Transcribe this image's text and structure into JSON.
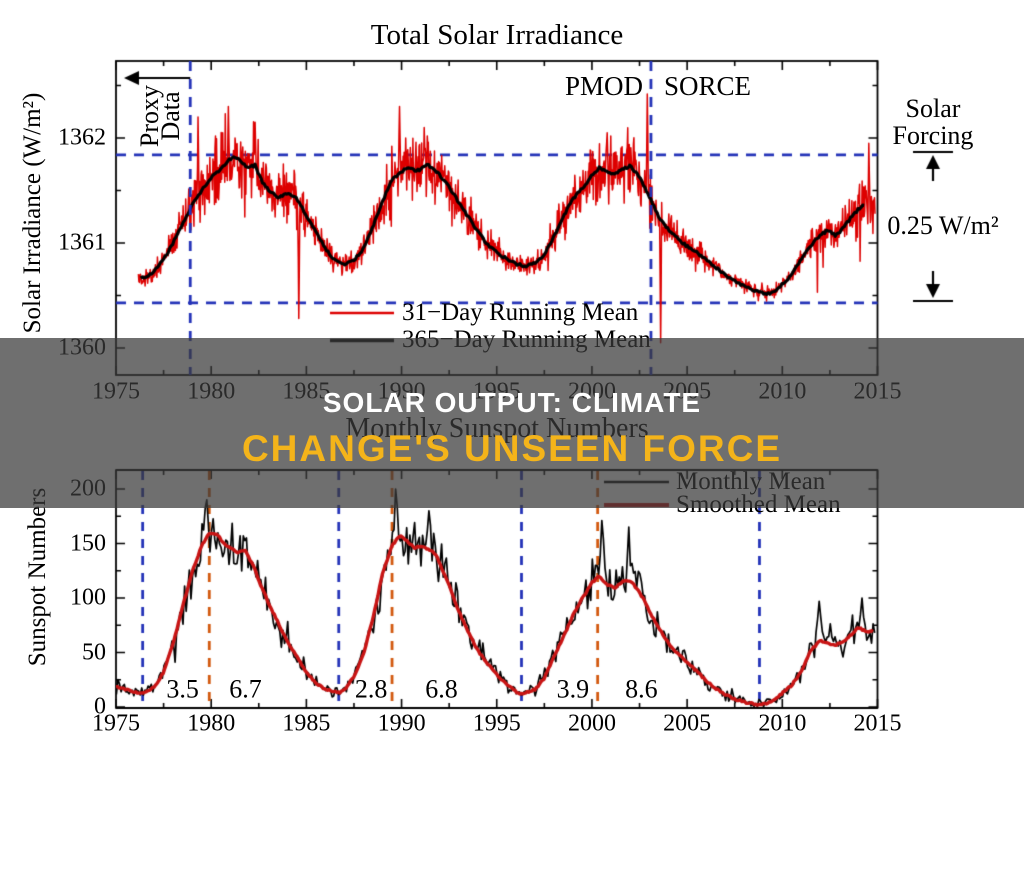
{
  "banner": {
    "line1": "SOLAR OUTPUT: CLIMATE",
    "line2": "CHANGE'S UNSEEN FORCE",
    "line1_color": "#ffffff",
    "line2_color": "#f4b41a",
    "overlay_color": "rgba(58,58,58,0.73)"
  },
  "chart_data": [
    {
      "type": "line",
      "title": "Total Solar Irradiance",
      "ylabel": "Solar Irradiance (W/m²)",
      "xlim": [
        1975,
        2015
      ],
      "ylim": [
        1359.74,
        1362.73
      ],
      "xticks": [
        1975,
        1980,
        1985,
        1990,
        1995,
        2000,
        2005,
        2010,
        2015
      ],
      "yticks": [
        1360,
        1361,
        1362
      ],
      "grid": false,
      "legend_position": "inside lower center",
      "series": [
        {
          "name": "31−Day Running Mean",
          "color": "#dd0000",
          "style": "noisy 31-day TSI oscillating about the 365-day mean; amplitude grows with solar activity",
          "noise_amplitude_range": [
            0.04,
            0.24
          ],
          "spikes": [
            [
              1979.3,
              1362.2
            ],
            [
              1980.9,
              1362.3
            ],
            [
              1982.3,
              1362.15
            ],
            [
              1984.6,
              1360.28
            ],
            [
              1989.9,
              1362.3
            ],
            [
              1991.2,
              1362.1
            ],
            [
              2000.8,
              1362.05
            ],
            [
              2002.9,
              1362.42
            ],
            [
              2003.6,
              1360.05
            ],
            [
              2014.55,
              1361.95
            ]
          ]
        },
        {
          "name": "365−Day Running Mean",
          "color": "#000000",
          "points": [
            [
              1976.3,
              1360.67
            ],
            [
              1976.6,
              1360.68
            ],
            [
              1977,
              1360.73
            ],
            [
              1977.5,
              1360.84
            ],
            [
              1978,
              1361.0
            ],
            [
              1978.5,
              1361.18
            ],
            [
              1979,
              1361.36
            ],
            [
              1979.5,
              1361.5
            ],
            [
              1980,
              1361.62
            ],
            [
              1980.5,
              1361.71
            ],
            [
              1981,
              1361.8
            ],
            [
              1981.3,
              1361.82
            ],
            [
              1981.6,
              1361.76
            ],
            [
              1982,
              1361.72
            ],
            [
              1982.3,
              1361.74
            ],
            [
              1982.7,
              1361.58
            ],
            [
              1983,
              1361.51
            ],
            [
              1983.5,
              1361.44
            ],
            [
              1984,
              1361.47
            ],
            [
              1984.4,
              1361.45
            ],
            [
              1984.8,
              1361.33
            ],
            [
              1985.2,
              1361.2
            ],
            [
              1985.6,
              1361.08
            ],
            [
              1986,
              1360.94
            ],
            [
              1986.5,
              1360.84
            ],
            [
              1987,
              1360.8
            ],
            [
              1987.5,
              1360.83
            ],
            [
              1988,
              1360.95
            ],
            [
              1988.5,
              1361.16
            ],
            [
              1989,
              1361.4
            ],
            [
              1989.5,
              1361.6
            ],
            [
              1990,
              1361.68
            ],
            [
              1990.3,
              1361.72
            ],
            [
              1990.7,
              1361.69
            ],
            [
              1991,
              1361.7
            ],
            [
              1991.3,
              1361.75
            ],
            [
              1991.6,
              1361.72
            ],
            [
              1992,
              1361.65
            ],
            [
              1992.5,
              1361.53
            ],
            [
              1993,
              1361.39
            ],
            [
              1993.5,
              1361.25
            ],
            [
              1994,
              1361.11
            ],
            [
              1994.5,
              1360.99
            ],
            [
              1995,
              1360.91
            ],
            [
              1995.5,
              1360.85
            ],
            [
              1996,
              1360.8
            ],
            [
              1996.5,
              1360.78
            ],
            [
              1997,
              1360.81
            ],
            [
              1997.5,
              1360.89
            ],
            [
              1998,
              1361.06
            ],
            [
              1998.5,
              1361.25
            ],
            [
              1999,
              1361.42
            ],
            [
              1999.5,
              1361.52
            ],
            [
              2000,
              1361.64
            ],
            [
              2000.4,
              1361.72
            ],
            [
              2000.8,
              1361.68
            ],
            [
              2001.2,
              1361.65
            ],
            [
              2001.6,
              1361.71
            ],
            [
              2002,
              1361.73
            ],
            [
              2002.4,
              1361.66
            ],
            [
              2002.8,
              1361.52
            ],
            [
              2003.2,
              1361.37
            ],
            [
              2003.6,
              1361.22
            ],
            [
              2004,
              1361.13
            ],
            [
              2004.5,
              1361.04
            ],
            [
              2005,
              1360.97
            ],
            [
              2005.5,
              1360.91
            ],
            [
              2006,
              1360.84
            ],
            [
              2006.5,
              1360.77
            ],
            [
              2007,
              1360.7
            ],
            [
              2007.5,
              1360.64
            ],
            [
              2008,
              1360.59
            ],
            [
              2008.5,
              1360.55
            ],
            [
              2009,
              1360.52
            ],
            [
              2009.4,
              1360.52
            ],
            [
              2009.8,
              1360.57
            ],
            [
              2010.2,
              1360.64
            ],
            [
              2010.6,
              1360.73
            ],
            [
              2011,
              1360.85
            ],
            [
              2011.5,
              1360.98
            ],
            [
              2012,
              1361.08
            ],
            [
              2012.4,
              1361.12
            ],
            [
              2012.8,
              1361.07
            ],
            [
              2013.2,
              1361.14
            ],
            [
              2013.6,
              1361.24
            ],
            [
              2014,
              1361.32
            ],
            [
              2014.3,
              1361.36
            ]
          ]
        }
      ],
      "reference_levels": {
        "upper_dashed": 1361.84,
        "lower_dashed": 1360.43
      },
      "boundaries": {
        "proxy_data_end": 1978.9,
        "pmod_sorce": 2003.1
      },
      "dashed_line_color": "#2433b8",
      "annotations": {
        "proxy": "Proxy\nData",
        "pmod": "PMOD",
        "sorce": "SORCE",
        "forcing_label": "Solar\nForcing",
        "forcing_amount": "0.25 W/m²"
      }
    },
    {
      "type": "line",
      "title": "Monthly Sunspot Numbers",
      "ylabel": "Sunspot Numbers",
      "xlim": [
        1975,
        2015
      ],
      "ylim": [
        0,
        217
      ],
      "xticks": [
        1975,
        1980,
        1985,
        1990,
        1995,
        2000,
        2005,
        2010,
        2015
      ],
      "yticks": [
        0,
        50,
        100,
        150,
        200
      ],
      "grid": false,
      "legend_position": "inside upper right",
      "series": [
        {
          "name": "Monthly Mean",
          "color": "#000000",
          "style": "noisy monthly sunspot counts around the smoothed mean",
          "peaks": [
            [
              1979.8,
              190
            ],
            [
              1989.7,
              200
            ],
            [
              1991.4,
              180
            ],
            [
              2000.5,
              171
            ],
            [
              2001.9,
              165
            ],
            [
              2011.9,
              97
            ],
            [
              2014.2,
              100
            ]
          ]
        },
        {
          "name": "Smoothed Mean",
          "color": "#c81414",
          "points": [
            [
              1975,
              19
            ],
            [
              1975.5,
              16
            ],
            [
              1976,
              13.5
            ],
            [
              1976.4,
              12.7
            ],
            [
              1977,
              18
            ],
            [
              1977.5,
              32
            ],
            [
              1978,
              58
            ],
            [
              1978.5,
              92
            ],
            [
              1979,
              124
            ],
            [
              1979.5,
              148
            ],
            [
              1979.9,
              160
            ],
            [
              1980.3,
              158
            ],
            [
              1980.7,
              150
            ],
            [
              1981,
              146
            ],
            [
              1981.4,
              142
            ],
            [
              1981.8,
              143
            ],
            [
              1982.2,
              130
            ],
            [
              1982.6,
              112
            ],
            [
              1983,
              96
            ],
            [
              1983.5,
              78
            ],
            [
              1984,
              60
            ],
            [
              1984.5,
              46
            ],
            [
              1985,
              32
            ],
            [
              1985.5,
              22
            ],
            [
              1986,
              16
            ],
            [
              1986.7,
              13
            ],
            [
              1987,
              16
            ],
            [
              1987.5,
              28
            ],
            [
              1988,
              48
            ],
            [
              1988.5,
              82
            ],
            [
              1989,
              122
            ],
            [
              1989.5,
              148
            ],
            [
              1989.9,
              157
            ],
            [
              1990.3,
              152
            ],
            [
              1990.7,
              146
            ],
            [
              1991,
              148
            ],
            [
              1991.4,
              145
            ],
            [
              1991.8,
              140
            ],
            [
              1992.2,
              124
            ],
            [
              1992.6,
              107
            ],
            [
              1993,
              88
            ],
            [
              1993.5,
              69
            ],
            [
              1994,
              52
            ],
            [
              1994.5,
              40
            ],
            [
              1995,
              30
            ],
            [
              1995.5,
              21
            ],
            [
              1996,
              14
            ],
            [
              1996.3,
              11.8
            ],
            [
              1997,
              16
            ],
            [
              1997.5,
              26
            ],
            [
              1998,
              46
            ],
            [
              1998.5,
              64
            ],
            [
              1999,
              84
            ],
            [
              1999.5,
              100
            ],
            [
              2000,
              114
            ],
            [
              2000.4,
              120
            ],
            [
              2000.8,
              112
            ],
            [
              2001.2,
              109
            ],
            [
              2001.6,
              115
            ],
            [
              2002,
              116
            ],
            [
              2002.4,
              108
            ],
            [
              2002.8,
              96
            ],
            [
              2003.2,
              82
            ],
            [
              2003.6,
              70
            ],
            [
              2004,
              59
            ],
            [
              2004.5,
              49
            ],
            [
              2005,
              41
            ],
            [
              2005.5,
              33
            ],
            [
              2006,
              24
            ],
            [
              2006.5,
              17
            ],
            [
              2007,
              11
            ],
            [
              2007.5,
              7.5
            ],
            [
              2008,
              4.5
            ],
            [
              2008.5,
              2.8
            ],
            [
              2008.9,
              2.2
            ],
            [
              2009.3,
              4
            ],
            [
              2009.7,
              8
            ],
            [
              2010,
              13
            ],
            [
              2010.5,
              20
            ],
            [
              2011,
              33
            ],
            [
              2011.5,
              52
            ],
            [
              2012,
              61
            ],
            [
              2012.4,
              58
            ],
            [
              2012.8,
              57
            ],
            [
              2013.2,
              60
            ],
            [
              2013.6,
              66
            ],
            [
              2014,
              73
            ],
            [
              2014.5,
              68
            ],
            [
              2014.8,
              70
            ]
          ]
        }
      ],
      "solar_minima_years": [
        1976.4,
        1986.7,
        1996.3,
        2008.8
      ],
      "solar_maxima_years": [
        1979.9,
        1989.5,
        2000.3
      ],
      "cycle_phase_labels": [
        {
          "text": "3.5",
          "year": 1978.5
        },
        {
          "text": "6.7",
          "year": 1981.8
        },
        {
          "text": "2.8",
          "year": 1988.4
        },
        {
          "text": "6.8",
          "year": 1992.1
        },
        {
          "text": "3.9",
          "year": 1999.0
        },
        {
          "text": "8.6",
          "year": 2002.6
        }
      ],
      "dashed_line_colors": {
        "minima": "#2433b8",
        "maxima": "#d2590f"
      }
    }
  ]
}
